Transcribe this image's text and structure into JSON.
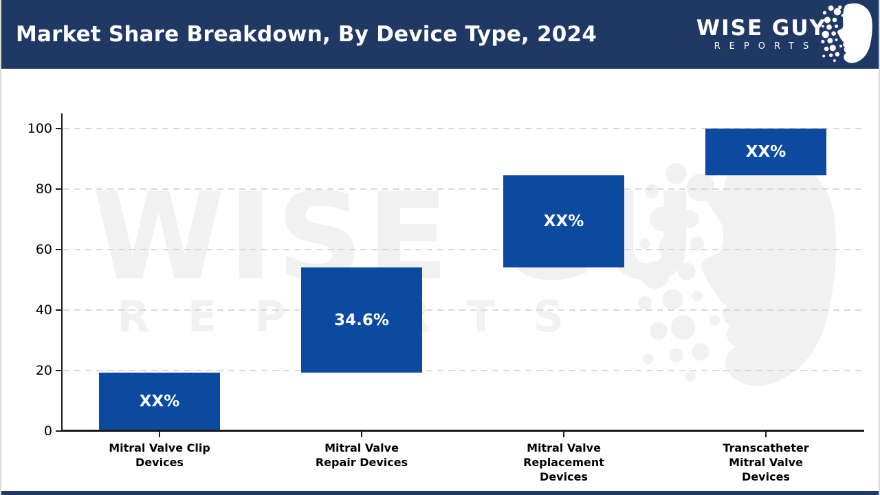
{
  "header": {
    "title": "Market Share Breakdown, By Device Type, 2024"
  },
  "logo": {
    "primary": "WISE GUY",
    "secondary": "REPORTS"
  },
  "colors": {
    "header_bg": "#1f3864",
    "bar": "#0b4a9e",
    "bar_label_text": "#ffffff",
    "grid": "#d9d9d9",
    "axis": "#1a1a1a",
    "watermark": "#f1f1f1"
  },
  "chart_data": {
    "type": "bar",
    "subtype": "waterfall-floating-bars",
    "title": "Market Share Breakdown, By Device Type, 2024",
    "xlabel": "",
    "ylabel": "",
    "ylim": [
      0,
      100
    ],
    "yticks": [
      0,
      20,
      40,
      60,
      80,
      100
    ],
    "grid": "dashed-horizontal",
    "legend": null,
    "categories": [
      "Mitral Valve Clip Devices",
      "Mitral Valve Repair Devices",
      "Mitral Valve Replacement Devices",
      "Transcatheter Mitral Valve Devices"
    ],
    "category_lines": [
      [
        "Mitral Valve Clip",
        "Devices"
      ],
      [
        "Mitral Valve",
        "Repair Devices"
      ],
      [
        "Mitral Valve",
        "Replacement",
        "Devices"
      ],
      [
        "Transcatheter",
        "Mitral Valve",
        "Devices"
      ]
    ],
    "bars": [
      {
        "category": "Mitral Valve Clip Devices",
        "start": 0,
        "end": 19.4,
        "value": 19.4,
        "label": "XX%"
      },
      {
        "category": "Mitral Valve Repair Devices",
        "start": 19.4,
        "end": 54.0,
        "value": 34.6,
        "label": "34.6%"
      },
      {
        "category": "Mitral Valve Replacement Devices",
        "start": 54.0,
        "end": 84.6,
        "value": 30.6,
        "label": "XX%"
      },
      {
        "category": "Transcatheter Mitral Valve Devices",
        "start": 84.6,
        "end": 100,
        "value": 15.4,
        "label": "XX%"
      }
    ]
  }
}
